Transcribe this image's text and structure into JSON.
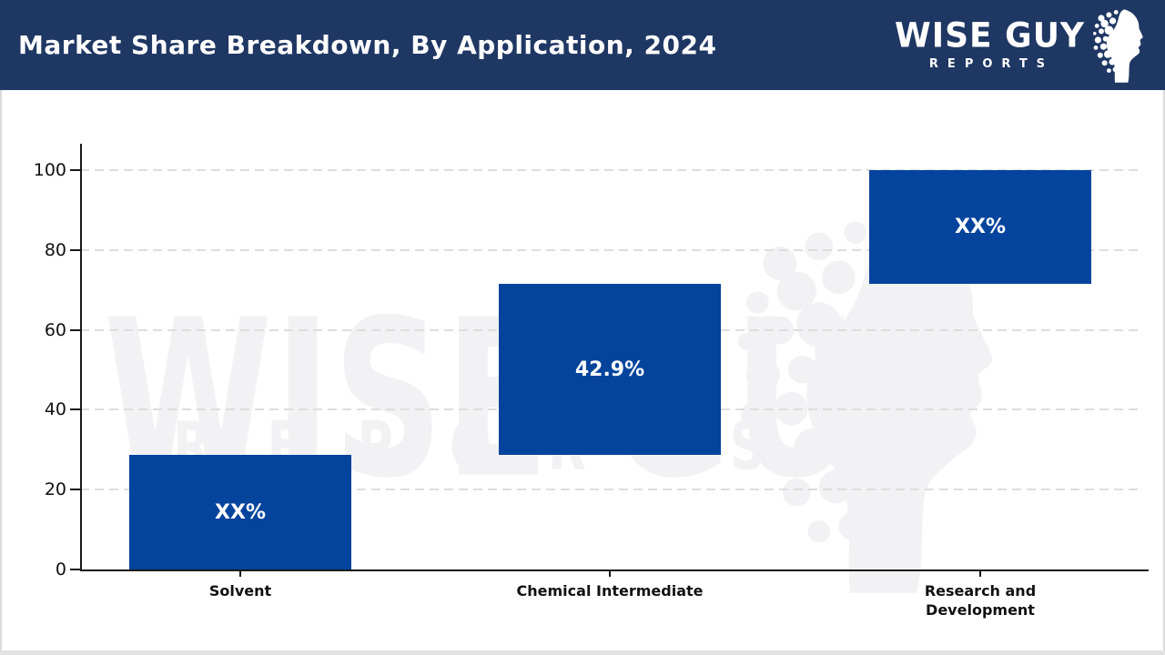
{
  "header": {
    "title": "Market Share Breakdown, By Application, 2024",
    "logo": {
      "name": "WISE GUY",
      "subtitle": "REPORTS"
    }
  },
  "watermark": {
    "line1": "WISE GUY",
    "line2": "REPORTS"
  },
  "colors": {
    "header_bg": "#1f3763",
    "bar": "#04449c",
    "bar_label": "#ffffff",
    "grid": "#dddddd",
    "axis": "#1a1a1a",
    "watermark": "#f2f2f4"
  },
  "chart_data": {
    "type": "bar",
    "subtype": "floating-stacked-percent",
    "title": "Market Share Breakdown, By Application, 2024",
    "categories": [
      "Solvent",
      "Chemical Intermediate",
      "Research and Development"
    ],
    "bars": [
      {
        "category": "Solvent",
        "label": "XX%",
        "start": 0,
        "end": 28.6
      },
      {
        "category": "Chemical Intermediate",
        "label": "42.9%",
        "start": 28.6,
        "end": 71.5
      },
      {
        "category": "Research and Development",
        "label": "XX%",
        "start": 71.5,
        "end": 100
      }
    ],
    "yticks": [
      0,
      20,
      40,
      60,
      80,
      100
    ],
    "ylim": [
      0,
      106
    ],
    "xlabel": "",
    "ylabel": "",
    "grid": "dashed-horizontal",
    "legend": false
  }
}
